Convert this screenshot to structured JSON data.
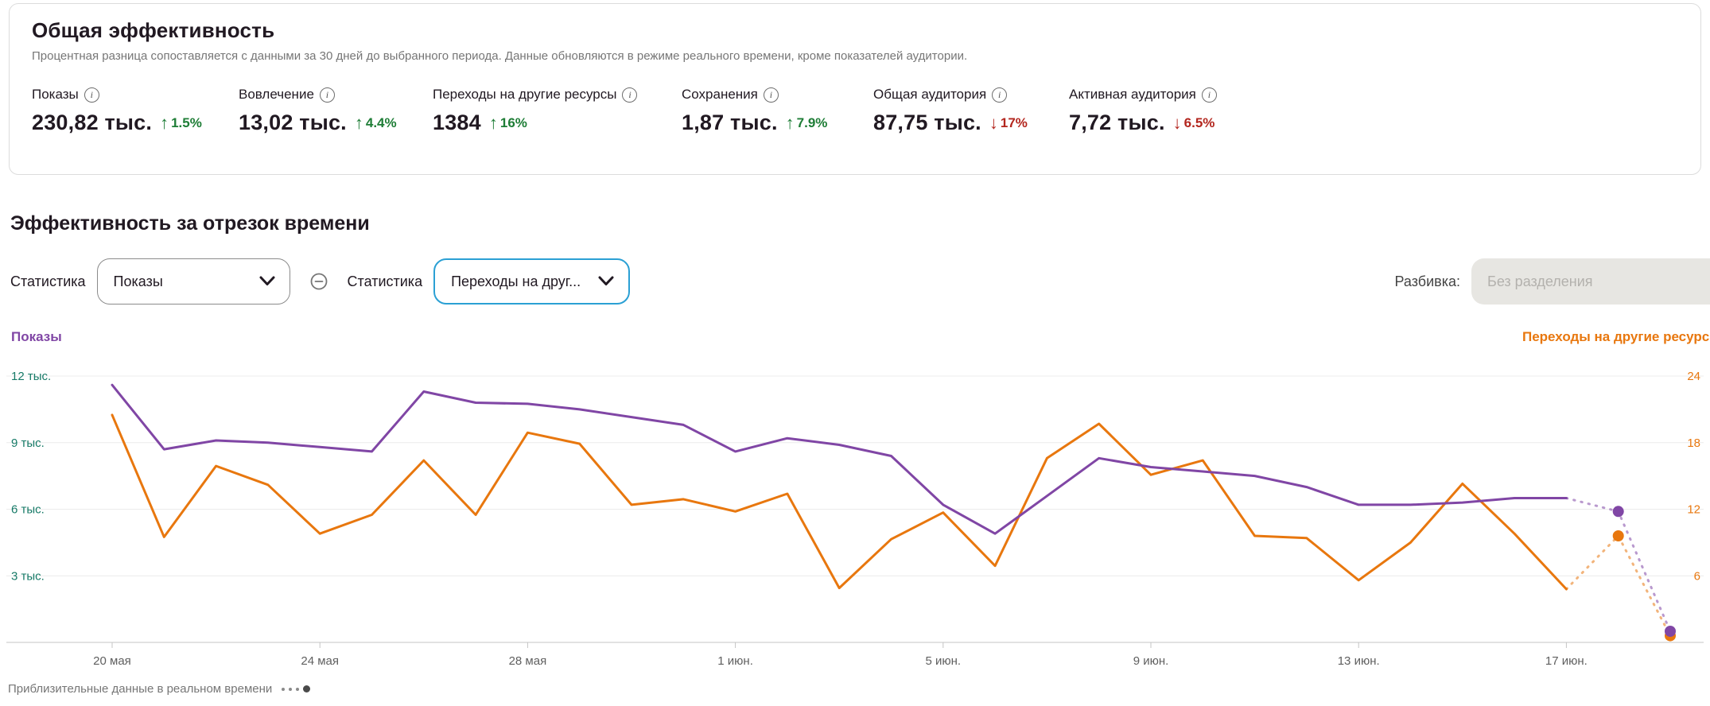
{
  "summary": {
    "title": "Общая эффективность",
    "subtitle": "Процентная разница сопоставляется с данными за 30 дней до выбранного периода. Данные обновляются в режиме реального времени, кроме показателей аудитории.",
    "metrics": [
      {
        "label": "Показы",
        "value": "230,82 тыс.",
        "direction": "up",
        "change": "1.5%"
      },
      {
        "label": "Вовлечение",
        "value": "13,02 тыс.",
        "direction": "up",
        "change": "4.4%"
      },
      {
        "label": "Переходы на другие ресурсы",
        "value": "1384",
        "direction": "up",
        "change": "16%"
      },
      {
        "label": "Сохранения",
        "value": "1,87 тыс.",
        "direction": "up",
        "change": "7.9%"
      },
      {
        "label": "Общая аудитория",
        "value": "87,75 тыс.",
        "direction": "down",
        "change": "17%"
      },
      {
        "label": "Активная аудитория",
        "value": "7,72 тыс.",
        "direction": "down",
        "change": "6.5%"
      }
    ]
  },
  "section": {
    "title": "Эффективность за отрезок времени",
    "stat_label_1": "Статистика",
    "stat_value_1": "Показы",
    "stat_label_2": "Статистика",
    "stat_value_2": "Переходы на друг...",
    "split_label": "Разбивка:",
    "split_value": "Без разделения"
  },
  "legend": {
    "left": "Показы",
    "right": "Переходы на другие ресурсы"
  },
  "footnote": "Приблизительные данные в реальном времени",
  "colors": {
    "series_1_purple": "#8046a5",
    "series_2_orange": "#e8770e",
    "positive_green": "#1e7d36",
    "negative_red": "#b3261e",
    "active_dropdown_blue": "#2ba0d4",
    "left_axis_teal": "#167a67"
  },
  "chart_data": {
    "type": "line",
    "title": "Эффективность за отрезок времени",
    "x_ticks": [
      {
        "i": 0,
        "label": "20 мая"
      },
      {
        "i": 4,
        "label": "24 мая"
      },
      {
        "i": 8,
        "label": "28 мая"
      },
      {
        "i": 12,
        "label": "1 июн."
      },
      {
        "i": 16,
        "label": "5 июн."
      },
      {
        "i": 20,
        "label": "9 июн."
      },
      {
        "i": 24,
        "label": "13 июн."
      },
      {
        "i": 28,
        "label": "17 июн."
      }
    ],
    "left_axis": {
      "max": 12,
      "color": "#167a67",
      "ticks": [
        {
          "value": 3,
          "label": "3 тыс."
        },
        {
          "value": 6,
          "label": "6 тыс."
        },
        {
          "value": 9,
          "label": "9 тыс."
        },
        {
          "value": 12,
          "label": "12 тыс."
        }
      ]
    },
    "right_axis": {
      "max": 24,
      "color": "#e8770e",
      "ticks": [
        {
          "value": 6,
          "label": "6"
        },
        {
          "value": 12,
          "label": "12"
        },
        {
          "value": 18,
          "label": "18"
        },
        {
          "value": 24,
          "label": "24"
        }
      ]
    },
    "series": [
      {
        "name": "Показы",
        "unit": "тыс.",
        "axis": "left",
        "color": "#8046a5",
        "dashed_from_index": 28,
        "dot_indices": [
          29,
          30
        ],
        "values": [
          11.6,
          8.7,
          9.1,
          9.0,
          8.8,
          8.6,
          11.3,
          10.8,
          10.75,
          10.5,
          10.15,
          9.8,
          8.6,
          9.2,
          8.9,
          8.4,
          6.2,
          4.9,
          6.6,
          8.3,
          7.9,
          7.7,
          7.5,
          7.0,
          6.2,
          6.2,
          6.3,
          6.5,
          6.5,
          5.9,
          0.5
        ]
      },
      {
        "name": "Переходы на другие ресурсы",
        "unit": "",
        "axis": "right",
        "color": "#e8770e",
        "dashed_from_index": 28,
        "dot_indices": [
          29,
          30
        ],
        "values": [
          20.5,
          9.5,
          15.9,
          14.2,
          9.8,
          11.5,
          16.4,
          11.5,
          18.9,
          17.9,
          12.4,
          12.9,
          11.8,
          13.4,
          4.9,
          9.3,
          11.7,
          6.9,
          16.6,
          19.7,
          15.1,
          16.4,
          9.6,
          9.4,
          5.6,
          9.0,
          14.3,
          9.8,
          4.8,
          9.6,
          0.6
        ]
      }
    ]
  }
}
